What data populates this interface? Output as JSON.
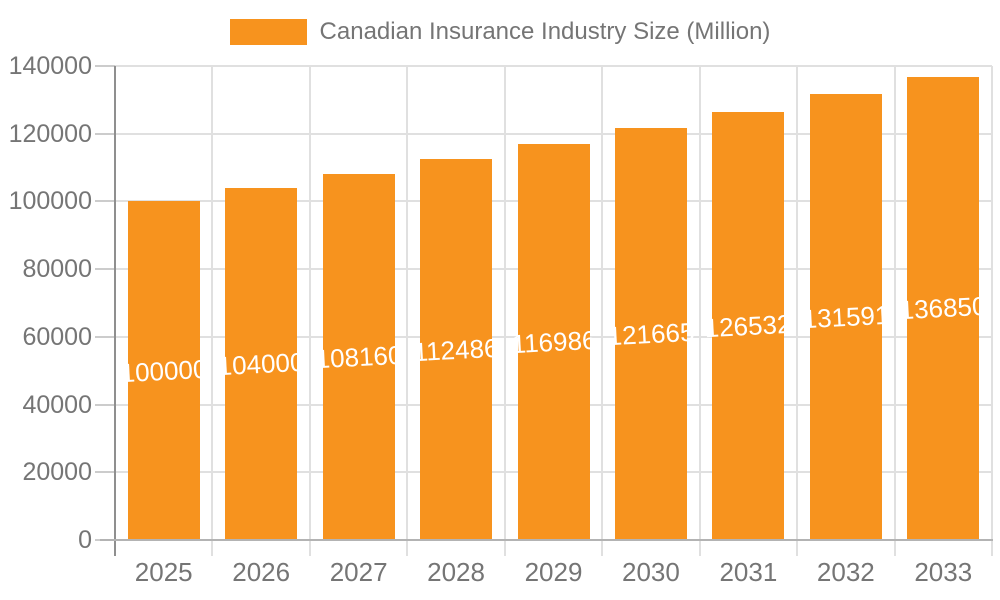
{
  "chart_data": {
    "type": "bar",
    "title": "Canadian Insurance Industry Size (Million)",
    "categories": [
      "2025",
      "2026",
      "2027",
      "2028",
      "2029",
      "2030",
      "2031",
      "2032",
      "2033"
    ],
    "values": [
      100000,
      104000,
      108160,
      112486,
      116986,
      121665,
      126532,
      131591,
      136850
    ],
    "xlabel": "",
    "ylabel": "",
    "ylim": [
      0,
      140000
    ],
    "yticks": [
      0,
      20000,
      40000,
      60000,
      80000,
      100000,
      120000,
      140000
    ],
    "grid": true,
    "legend_position": "top",
    "value_labels_inside_bars": true,
    "colors": {
      "bar": "#F7931E",
      "value_label": "#FFFFFF",
      "axis_text": "#757575",
      "y_axis_line": "#8F8F8F",
      "x_axis_line": "#B3B3B3",
      "gridline": "#E0E0E0",
      "tick": "#CCCCCC",
      "background": "#FFFFFF"
    }
  }
}
